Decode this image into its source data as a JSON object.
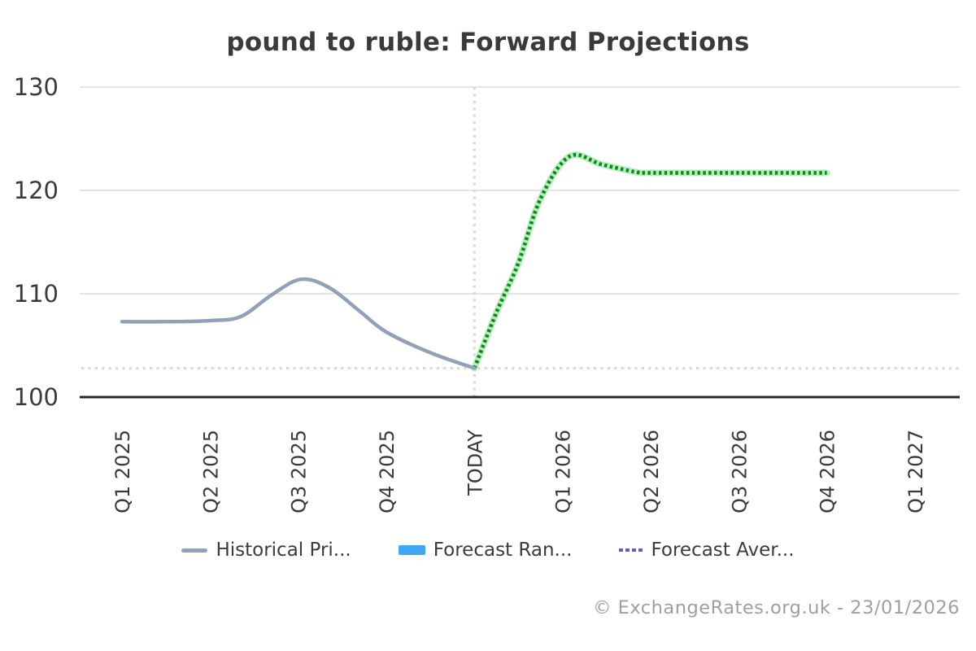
{
  "page": {
    "title": "pound to ruble: Forward Projections",
    "watermark": "© ExchangeRates.org.uk - 23/01/2026"
  },
  "legend": {
    "items": [
      {
        "name": "historical-price",
        "label": "Historical Pri...",
        "swatch": "line",
        "color": "#92a1ba"
      },
      {
        "name": "forecast-range",
        "label": "Forecast Ran...",
        "swatch": "rect",
        "color": "#41a7f5"
      },
      {
        "name": "forecast-average",
        "label": "Forecast Aver...",
        "swatch": "dots",
        "color": "#5d5dd5"
      }
    ]
  },
  "chart_data": {
    "type": "line",
    "title": "pound to ruble: Forward Projections",
    "categories": [
      "Q1 2025",
      "Q2 2025",
      "Q3 2025",
      "Q4 2025",
      "TODAY",
      "Q1 2026",
      "Q2 2026",
      "Q3 2026",
      "Q4 2026",
      "Q1 2027"
    ],
    "xlabel": "",
    "ylabel": "",
    "ylim": [
      100,
      130
    ],
    "yticks": [
      100,
      110,
      120,
      130
    ],
    "grid": "horizontal",
    "legend_position": "bottom",
    "guides": {
      "today_category": "TODAY",
      "today_category_index": 4,
      "current_value_line": 102.8,
      "guide_color": "#d9d9d9"
    },
    "series": [
      {
        "name": "Historical Price",
        "style": "solid",
        "color": "#92a1ba",
        "categories": [
          "Q1 2025",
          "Q2 2025",
          "Q3 2025",
          "Q4 2025",
          "TODAY"
        ],
        "values": [
          107.3,
          107.4,
          111.4,
          106.3,
          102.8
        ]
      },
      {
        "name": "Forecast Average",
        "style": "dotted",
        "color": "#0f8a0f",
        "band_color": "#b5eec5",
        "categories": [
          "TODAY",
          "Q1 2026",
          "Q2 2026",
          "Q3 2026",
          "Q4 2026"
        ],
        "values": [
          102.8,
          123.3,
          121.7,
          121.7,
          121.7
        ]
      }
    ],
    "curve_detail": {
      "note": "x is fractional category index (0 = Q1 2025 ... 9 = Q1 2027), y is rate",
      "historical": [
        [
          0,
          107.3
        ],
        [
          0.5,
          107.3
        ],
        [
          1,
          107.4
        ],
        [
          1.35,
          107.8
        ],
        [
          1.7,
          109.9
        ],
        [
          2.03,
          111.4
        ],
        [
          2.35,
          110.6
        ],
        [
          2.7,
          108.3
        ],
        [
          3,
          106.3
        ],
        [
          3.5,
          104.3
        ],
        [
          4,
          102.8
        ]
      ],
      "forecast": [
        [
          4,
          102.8
        ],
        [
          4.25,
          108.2
        ],
        [
          4.5,
          113.0
        ],
        [
          4.75,
          119.2
        ],
        [
          5.08,
          123.3
        ],
        [
          5.45,
          122.5
        ],
        [
          5.85,
          121.75
        ],
        [
          6,
          121.7
        ],
        [
          7,
          121.7
        ],
        [
          8,
          121.7
        ]
      ]
    },
    "colors": {
      "axis": "#2b2b2b",
      "gridline": "#e4e4e4",
      "tick_label": "#3a3a3a",
      "historical_line": "#92a1ba",
      "forecast_dot": "#0f8a0f",
      "forecast_band": "#b5eec5"
    }
  }
}
